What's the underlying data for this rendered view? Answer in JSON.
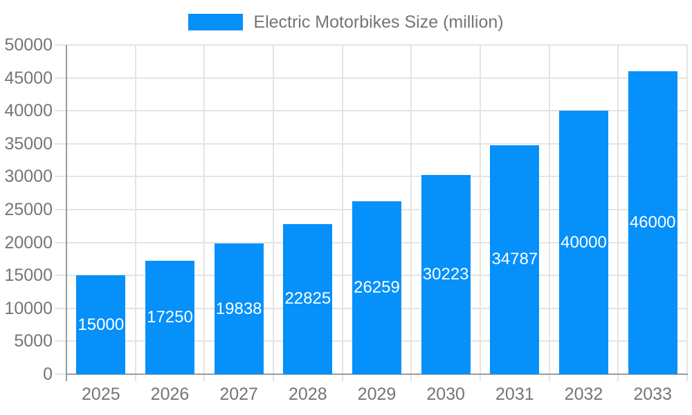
{
  "chart_data": {
    "type": "bar",
    "title": "Electric Motorbikes Size (million)",
    "series_name": "Electric Motorbikes Size (million)",
    "categories": [
      "2025",
      "2026",
      "2027",
      "2028",
      "2029",
      "2030",
      "2031",
      "2032",
      "2033"
    ],
    "values": [
      15000,
      17250,
      19838,
      22825,
      26259,
      30223,
      34787,
      40000,
      46000
    ],
    "xlabel": "",
    "ylabel": "",
    "ylim": [
      0,
      50000
    ],
    "ytick_step": 5000,
    "ytick_labels": [
      "0",
      "5000",
      "10000",
      "15000",
      "20000",
      "25000",
      "30000",
      "35000",
      "40000",
      "45000",
      "50000"
    ],
    "grid": true,
    "legend_position": "top",
    "value_label_position": "inside-center",
    "bar_color": "#0590fa",
    "value_label_color": "#ffffff"
  },
  "colors": {
    "background": "#ffffff",
    "grid": "#e4e4e4",
    "axis": "#9b9b9b",
    "text": "#757575"
  }
}
